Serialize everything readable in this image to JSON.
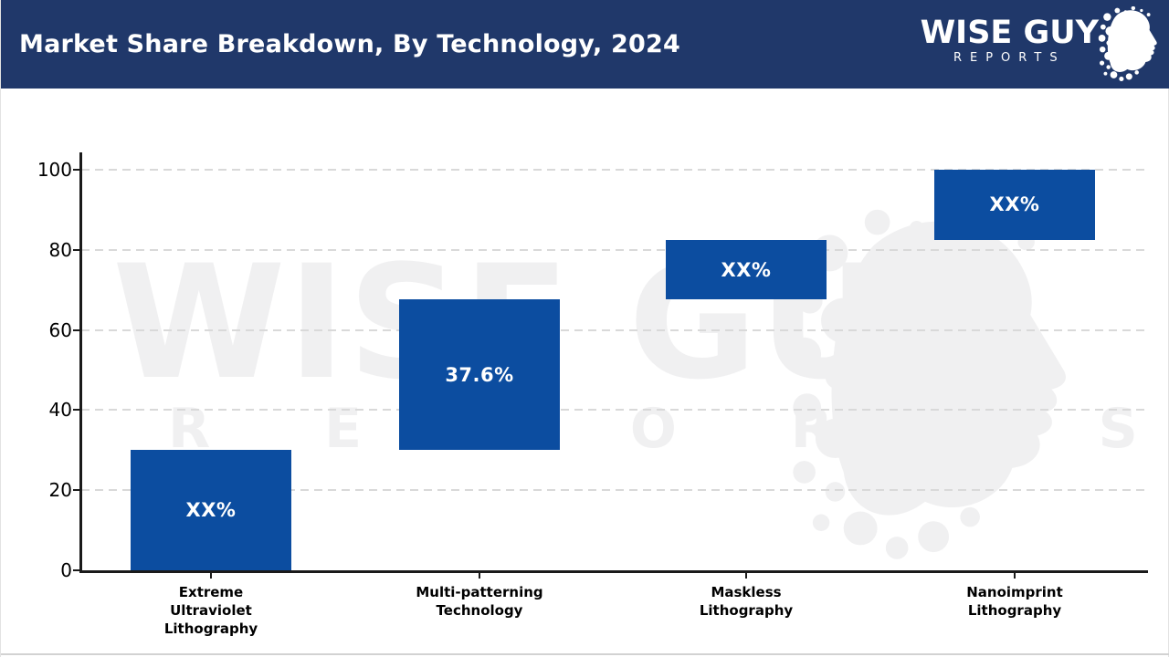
{
  "header": {
    "title": "Market Share Breakdown, By Technology, 2024",
    "logo": {
      "line1": "WISE GUY",
      "line2": "REPORTS"
    }
  },
  "watermark": {
    "line1": "WISE GUY",
    "line2": "R E P O R T S"
  },
  "chart_data": {
    "type": "bar",
    "subtype": "floating-waterfall-segments",
    "title": "Market Share Breakdown, By Technology, 2024",
    "categories": [
      "Extreme Ultraviolet Lithography",
      "Multi-patterning Technology",
      "Maskless Lithography",
      "Nanoimprint Lithography"
    ],
    "tick_labels": [
      "Extreme\nUltraviolet\nLithography",
      "Multi-patterning\nTechnology",
      "Maskless\nLithography",
      "Nanoimprint\nLithography"
    ],
    "segments": [
      {
        "category": "Extreme Ultraviolet Lithography",
        "start": 0,
        "end": 30,
        "height": 30.0,
        "value_label": "XX%"
      },
      {
        "category": "Multi-patterning Technology",
        "start": 30,
        "end": 67.6,
        "height": 37.6,
        "value_label": "37.6%"
      },
      {
        "category": "Maskless Lithography",
        "start": 67.6,
        "end": 82.5,
        "height": 14.9,
        "value_label": "XX%"
      },
      {
        "category": "Nanoimprint Lithography",
        "start": 82.5,
        "end": 100,
        "height": 17.5,
        "value_label": "XX%"
      }
    ],
    "xlabel": "",
    "ylabel": "",
    "ylim": [
      0,
      100
    ],
    "yticks": [
      0,
      20,
      40,
      60,
      80,
      100
    ],
    "grid": "horizontal-dashed",
    "legend": "none",
    "colors": {
      "bar": "#0c4da0",
      "bar_label": "#ffffff",
      "header_bg": "#20386a",
      "grid": "#d9d9d9",
      "axis": "#1a1a1a",
      "watermark": "#f0f0f1",
      "title_text": "#ffffff"
    }
  }
}
